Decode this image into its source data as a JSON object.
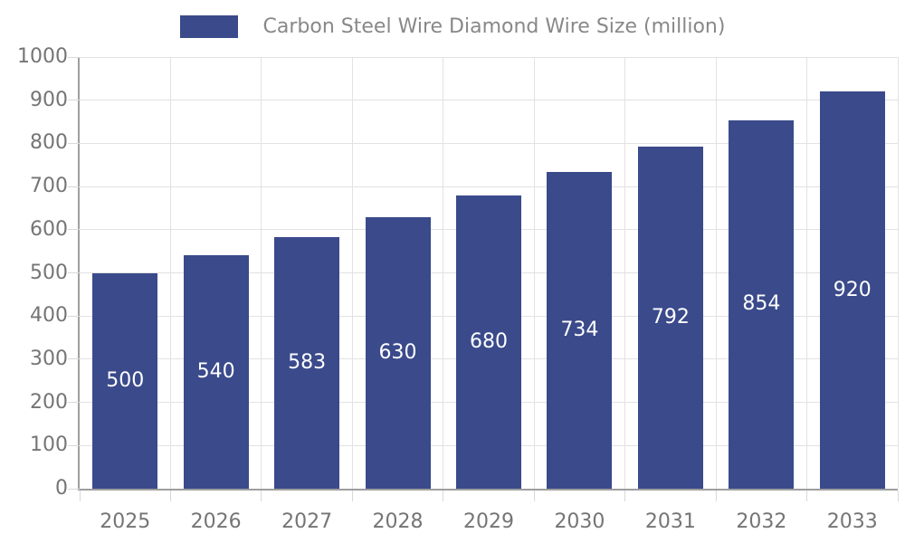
{
  "legend": {
    "label": "Carbon Steel Wire Diamond Wire Size (million)"
  },
  "chart_data": {
    "type": "bar",
    "title": "Carbon Steel Wire Diamond Wire Size (million)",
    "categories": [
      "2025",
      "2026",
      "2027",
      "2028",
      "2029",
      "2030",
      "2031",
      "2032",
      "2033"
    ],
    "series": [
      {
        "name": "Carbon Steel Wire Diamond Wire Size (million)",
        "values": [
          500,
          540,
          583,
          630,
          680,
          734,
          792,
          854,
          920
        ]
      }
    ],
    "value_labels": [
      "500",
      "540",
      "583",
      "630",
      "680",
      "734",
      "792",
      "854",
      "920"
    ],
    "xlabel": "",
    "ylabel": "",
    "ylim": [
      0,
      1000
    ],
    "yticks": [
      0,
      100,
      200,
      300,
      400,
      500,
      600,
      700,
      800,
      900,
      1000
    ],
    "grid": true,
    "legend_position": "top-center",
    "colors": {
      "bar": "#3A4A8B",
      "bar_label": "#ffffff",
      "axis_line": "#9e9e9e",
      "grid_line": "#e2e2e2",
      "tick_line": "#d9d9d9",
      "axis_text": "#757575",
      "legend_text": "#888888"
    }
  }
}
